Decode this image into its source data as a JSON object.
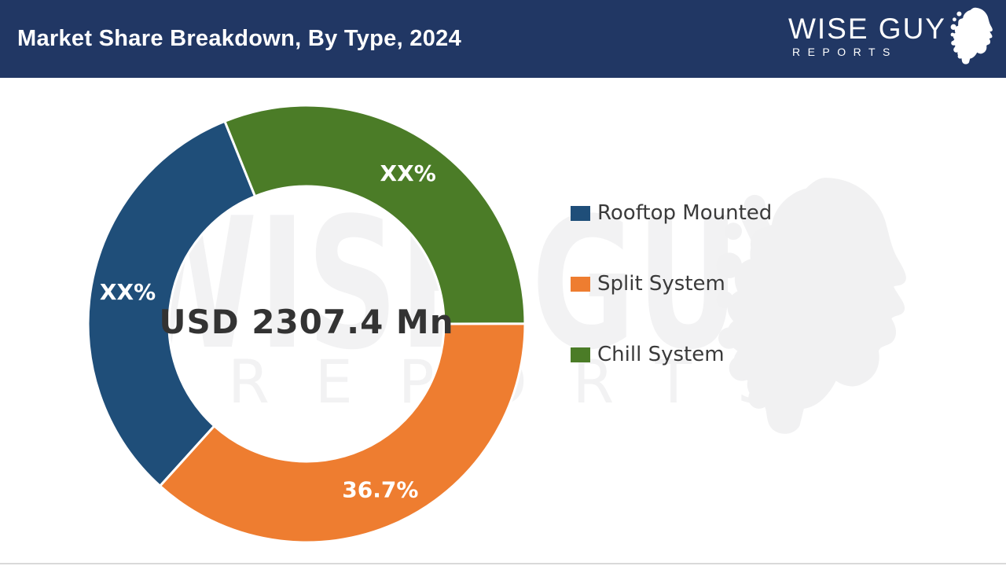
{
  "header": {
    "title": "Market Share Breakdown, By Type, 2024",
    "logo": {
      "line1": "WISE GUY",
      "line2": "REPORTS"
    }
  },
  "watermark": {
    "line1": "WISE GUY",
    "line2": "REPORTS"
  },
  "colors": {
    "header_bg": "#213764",
    "slice_blue": "#1f4e79",
    "slice_orange": "#ee7d30",
    "slice_green": "#4b7c27",
    "center_text": "#333333",
    "legend_text": "#3a3a3a",
    "watermark": "#f2f2f3",
    "divider": "#d9d9d9"
  },
  "chart_data": {
    "type": "pie",
    "subtype": "donut",
    "title": "Market Share Breakdown, By Type, 2024",
    "center_label": "USD 2307.4 Mn",
    "total_value_usd_mn": 2307.4,
    "slices": [
      {
        "name": "Rooftop Mounted",
        "display_label": "XX%",
        "pct": 32.2,
        "pct_is_estimate": true,
        "color": "#1f4e79"
      },
      {
        "name": "Split System",
        "display_label": "36.7%",
        "pct": 36.7,
        "pct_is_estimate": false,
        "color": "#ee7d30"
      },
      {
        "name": "Chill System",
        "display_label": "XX%",
        "pct": 31.1,
        "pct_is_estimate": true,
        "color": "#4b7c27"
      }
    ],
    "legend": {
      "position": "right",
      "items": [
        "Rooftop Mounted",
        "Split System",
        "Chill System"
      ]
    },
    "layout": {
      "start_angle_deg_clockwise_from_top": 222.1,
      "draw_order": [
        0,
        2,
        1
      ],
      "outer_radius": 278,
      "inner_radius": 175,
      "label_radius": 231,
      "separator_color": "#ffffff",
      "separator_width": 3
    }
  }
}
